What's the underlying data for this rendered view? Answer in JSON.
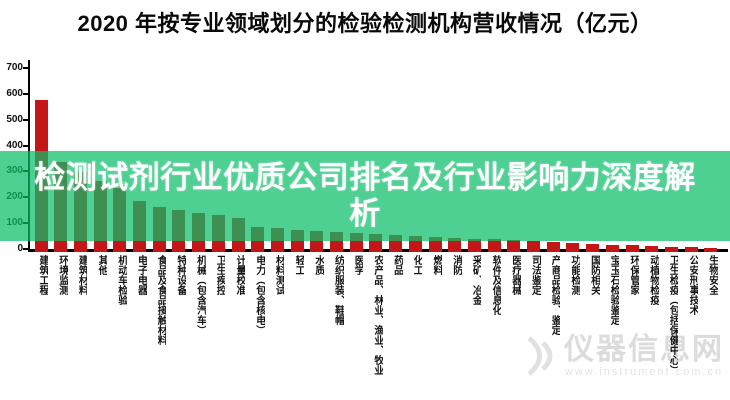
{
  "title": "2020 年按专业领域划分的检验检测机构营收情况（亿元）",
  "overlay_banner": {
    "line1": "检测试剂行业优质公司排名及行业影响力深度解",
    "line2": "析",
    "full_text": "检测试剂行业优质公司排名及行业影响力深度解析",
    "bg_color": "#0abe69",
    "text_color": "#ffffff"
  },
  "watermark": {
    "brand": "仪器信息网",
    "subtext": "www.instrument.com.cn",
    "icon": "gem-logo-icon"
  },
  "chart_data": {
    "type": "bar",
    "title": "2020 年按专业领域划分的检验检测机构营收情况（亿元）",
    "xlabel": "",
    "ylabel": "",
    "ylim": [
      0,
      700
    ],
    "yticks": [
      0,
      100,
      200,
      300,
      400,
      500,
      600,
      700
    ],
    "grid": false,
    "legend": null,
    "bar_color": "#c41616",
    "axis_color": "#000000",
    "categories": [
      "建筑工程",
      "环境监测",
      "建筑材料",
      "其他",
      "机动车检验",
      "电子电器",
      "食品及食品接触材料",
      "特种设备",
      "机械（包含汽车）",
      "卫生疾控",
      "计量校准",
      "电力（包含核电）",
      "材料测试",
      "轻工",
      "水质",
      "纺织服装、鞋帽",
      "医学",
      "农产品、林业、渔业、牧业",
      "药品",
      "化工",
      "燃料",
      "消防",
      "采矿、冶金",
      "软件及信息化",
      "医疗器械",
      "司法鉴定",
      "产商品检验、鉴定",
      "功能检测",
      "国防相关",
      "宝玉石检验鉴定",
      "环保管家",
      "动植物检疫",
      "卫生检疫（包括保健中心）",
      "公安刑事技术",
      "生物安全"
    ],
    "values": [
      576,
      335,
      296,
      264,
      234,
      186,
      164,
      152,
      140,
      130,
      118,
      86,
      80,
      75,
      71,
      67,
      63,
      59,
      55,
      51,
      47,
      44,
      40,
      37,
      34,
      31,
      28,
      24,
      20,
      17,
      14,
      11,
      9,
      7,
      5
    ]
  }
}
